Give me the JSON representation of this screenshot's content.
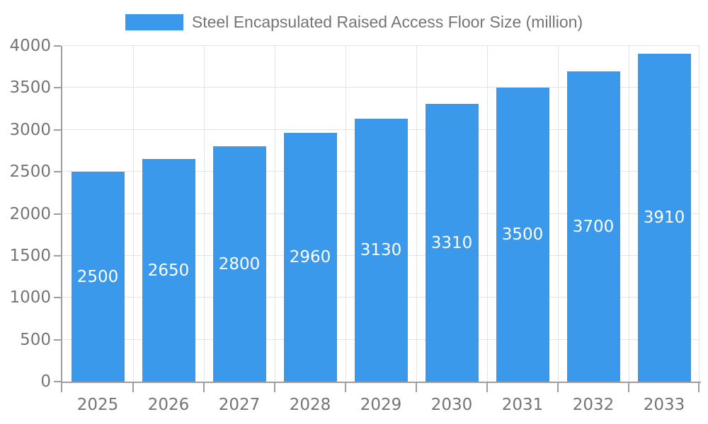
{
  "chart_data": {
    "type": "bar",
    "title": "Steel Encapsulated Raised Access Floor Size (million)",
    "categories": [
      "2025",
      "2026",
      "2027",
      "2028",
      "2029",
      "2030",
      "2031",
      "2032",
      "2033"
    ],
    "values": [
      2500,
      2650,
      2800,
      2960,
      3130,
      3310,
      3500,
      3700,
      3910
    ],
    "value_labels": [
      "2500",
      "2650",
      "2800",
      "2960",
      "3130",
      "3310",
      "3500",
      "3700",
      "3910"
    ],
    "xlabel": "",
    "ylabel": "",
    "ylim": [
      0,
      4000
    ],
    "yticks": [
      0,
      500,
      1000,
      1500,
      2000,
      2500,
      3000,
      3500,
      4000
    ],
    "grid": true,
    "legend_position": "top-center"
  },
  "colors": {
    "bar": "#3B99EC",
    "axis": "#9E9E9E",
    "grid": "#E4E4E4",
    "tick_text": "#757575",
    "legend_text": "#757575",
    "value_label_text": "#FFFFFF",
    "background": "#FFFFFF"
  }
}
